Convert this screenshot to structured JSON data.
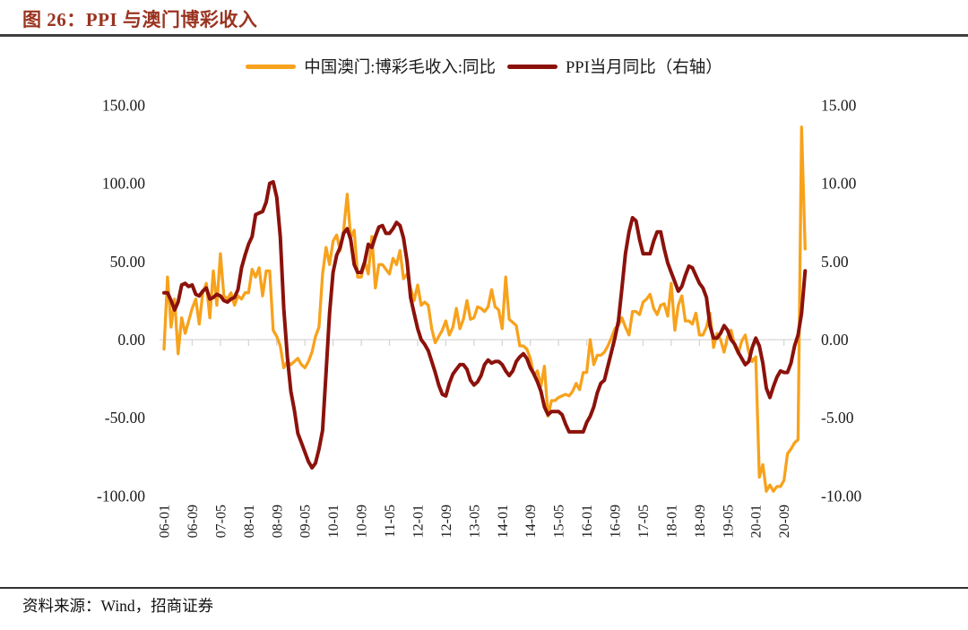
{
  "figure": {
    "title": "图 26：PPI 与澳门博彩收入",
    "source": "资料来源：Wind，招商证券"
  },
  "chart_data": {
    "type": "line",
    "x_frequency": "monthly",
    "x_start": "2006-01",
    "x_end": "2021-03",
    "grid": "zero-line-only",
    "legend_position": "top-center",
    "x_tick_labels": [
      "06-01",
      "06-09",
      "07-05",
      "08-01",
      "08-09",
      "09-05",
      "10-01",
      "10-09",
      "11-05",
      "12-01",
      "12-09",
      "13-05",
      "14-01",
      "14-09",
      "15-05",
      "16-01",
      "16-09",
      "17-05",
      "18-01",
      "18-09",
      "19-05",
      "20-01",
      "20-09"
    ],
    "x_tick_month_step": 8,
    "left_axis": {
      "range": [
        -100,
        150
      ],
      "tick_values": [
        150,
        100,
        50,
        0,
        -50,
        -100
      ],
      "tick_labels": [
        "150.00",
        "100.00",
        "50.00",
        "0.00",
        "-50.00",
        "-100.00"
      ]
    },
    "right_axis": {
      "range": [
        -10,
        15
      ],
      "tick_values": [
        15,
        10,
        5,
        0,
        -5,
        -10
      ],
      "tick_labels": [
        "15.00",
        "10.00",
        "5.00",
        "0.00",
        "-5.00",
        "-10.00"
      ]
    },
    "colors": {
      "macau_line": "#F7A21C",
      "ppi_line": "#8B120B",
      "zero_line": "#D6D6D6",
      "title": "#9A3420"
    },
    "series": [
      {
        "name": "中国澳门:博彩毛收入:同比",
        "axis": "left",
        "color": "#F7A21C",
        "values": [
          -6,
          40,
          8,
          26,
          -9,
          14,
          4,
          12,
          20,
          26,
          10,
          30,
          36,
          14,
          44,
          22,
          55,
          28,
          26,
          30,
          22,
          28,
          26,
          30,
          30,
          45,
          40,
          46,
          28,
          44,
          44,
          6,
          2,
          -4,
          -18,
          -14,
          -16,
          -14,
          -12,
          -16,
          -18,
          -14,
          -8,
          2,
          8,
          42,
          59,
          48,
          63,
          67,
          57,
          70,
          93,
          65,
          70,
          40,
          40,
          50,
          42,
          66,
          33,
          48,
          48,
          45,
          42,
          52,
          48,
          57,
          39,
          42,
          33,
          25,
          35,
          22,
          24,
          22,
          7,
          -2,
          2,
          6,
          12,
          3,
          8,
          20,
          7,
          13,
          25,
          13,
          14,
          21,
          20,
          18,
          21,
          32,
          21,
          19,
          7,
          40,
          13,
          11,
          9,
          -4,
          -4,
          -6,
          -12,
          -23,
          -20,
          -30,
          -17,
          -49,
          -39,
          -39,
          -37,
          -36,
          -35,
          -36,
          -33,
          -28,
          -32,
          -21,
          -21,
          0,
          -16,
          -10,
          -10,
          -8,
          -4,
          1,
          7,
          9,
          14,
          8,
          3,
          18,
          18,
          16,
          24,
          26,
          29,
          20,
          16,
          22,
          23,
          15,
          36,
          6,
          22,
          28,
          12,
          12,
          10,
          17,
          3,
          3,
          8,
          17,
          -5,
          4,
          0,
          -8,
          2,
          6,
          -4,
          -9,
          -1,
          3,
          -8,
          -14,
          -11,
          -88,
          -80,
          -97,
          -93,
          -97,
          -94,
          -94,
          -90,
          -73,
          -70,
          -66,
          -64,
          136,
          58
        ]
      },
      {
        "name": "PPI当月同比（右轴）",
        "axis": "right",
        "color": "#8B120B",
        "values": [
          3.0,
          3.0,
          2.5,
          1.9,
          2.4,
          3.5,
          3.6,
          3.4,
          3.5,
          2.9,
          2.8,
          3.1,
          3.3,
          2.6,
          2.7,
          2.9,
          2.8,
          2.5,
          2.4,
          2.6,
          2.7,
          3.2,
          4.6,
          5.4,
          6.1,
          6.6,
          8.0,
          8.1,
          8.2,
          8.8,
          10.0,
          10.1,
          9.1,
          6.6,
          2.0,
          -1.1,
          -3.3,
          -4.5,
          -6.0,
          -6.6,
          -7.2,
          -7.8,
          -8.2,
          -7.9,
          -7.0,
          -5.8,
          -2.1,
          1.7,
          4.3,
          5.4,
          5.9,
          6.8,
          7.1,
          6.4,
          4.8,
          4.3,
          4.3,
          5.0,
          6.1,
          5.9,
          6.6,
          7.2,
          7.3,
          6.8,
          6.8,
          7.1,
          7.5,
          7.3,
          6.5,
          5.0,
          2.7,
          1.7,
          0.7,
          0.0,
          -0.3,
          -0.7,
          -1.4,
          -2.1,
          -2.9,
          -3.5,
          -3.6,
          -2.8,
          -2.2,
          -1.9,
          -1.6,
          -1.6,
          -1.9,
          -2.6,
          -2.9,
          -2.7,
          -2.3,
          -1.6,
          -1.3,
          -1.5,
          -1.4,
          -1.4,
          -1.6,
          -2.0,
          -2.3,
          -2.0,
          -1.4,
          -1.1,
          -0.9,
          -1.2,
          -1.8,
          -2.2,
          -2.7,
          -3.3,
          -4.3,
          -4.8,
          -4.6,
          -4.6,
          -4.6,
          -4.8,
          -5.4,
          -5.9,
          -5.9,
          -5.9,
          -5.9,
          -5.9,
          -5.3,
          -4.9,
          -4.3,
          -3.4,
          -2.8,
          -2.6,
          -1.7,
          -0.8,
          0.1,
          1.2,
          3.3,
          5.5,
          6.9,
          7.8,
          7.6,
          6.4,
          5.5,
          5.5,
          5.5,
          6.3,
          6.9,
          6.9,
          5.8,
          4.9,
          4.3,
          3.7,
          3.1,
          3.4,
          4.1,
          4.7,
          4.6,
          4.1,
          3.6,
          3.3,
          2.7,
          0.9,
          0.1,
          0.1,
          0.4,
          0.9,
          0.6,
          0.0,
          -0.3,
          -0.8,
          -1.2,
          -1.6,
          -1.4,
          -0.5,
          0.1,
          -0.4,
          -1.5,
          -3.1,
          -3.7,
          -3.0,
          -2.4,
          -2.0,
          -2.1,
          -2.1,
          -1.5,
          -0.4,
          0.3,
          1.7,
          4.4
        ]
      }
    ]
  }
}
